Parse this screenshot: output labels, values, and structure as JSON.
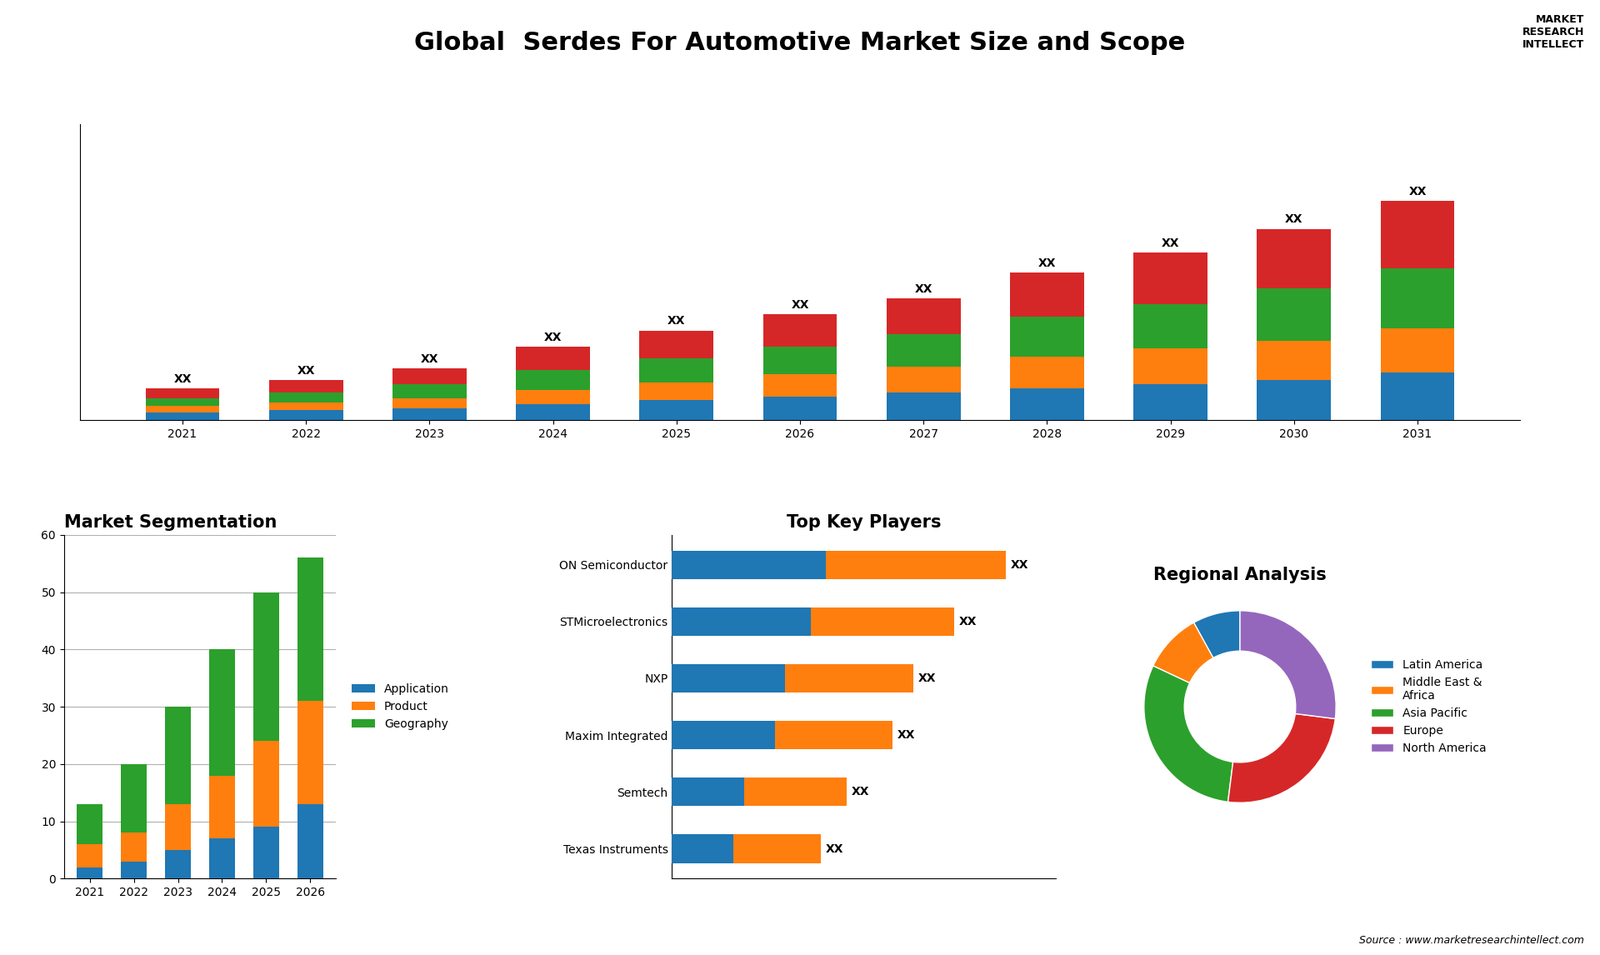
{
  "title": "Global  Serdes For Automotive Market Size and Scope",
  "annotations": [
    "Source : www.marketresearchintellect.com",
    "MARKET\nRESEARCH\nINTELLECT"
  ],
  "chart_data": [
    {
      "type": "bar",
      "stacked": true,
      "categories": [
        "2021",
        "2022",
        "2023",
        "2024",
        "2025",
        "2026",
        "2027",
        "2028",
        "2029",
        "2030",
        "2031"
      ],
      "series": [
        {
          "values": [
            2,
            2.5,
            3,
            4,
            5,
            6,
            7,
            8,
            9,
            10,
            12
          ]
        },
        {
          "values": [
            1.5,
            2,
            2.5,
            3.5,
            4.5,
            5.5,
            6.5,
            8,
            9,
            10,
            11
          ]
        },
        {
          "values": [
            2,
            2.5,
            3.5,
            5,
            6,
            7,
            8,
            10,
            11,
            13,
            15
          ]
        },
        {
          "values": [
            2.5,
            3,
            4,
            6,
            7,
            8,
            9,
            11,
            13,
            15,
            17
          ]
        }
      ],
      "ylim": [
        0,
        74.25
      ],
      "tick_labels": "x",
      "data_labels": true,
      "value_labels": [
        "XX",
        "XX",
        "XX",
        "XX",
        "XX",
        "XX",
        "XX",
        "XX",
        "XX",
        "XX",
        "XX"
      ]
    },
    {
      "type": "bar",
      "stacked": true,
      "title": "Market Segmentation",
      "categories": [
        "2021",
        "2022",
        "2023",
        "2024",
        "2025",
        "2026"
      ],
      "series": [
        {
          "name": "Application",
          "values": [
            2,
            3,
            5,
            7,
            9,
            13
          ]
        },
        {
          "name": "Product",
          "values": [
            4,
            5,
            8,
            11,
            15,
            18
          ]
        },
        {
          "name": "Geography",
          "values": [
            7,
            12,
            17,
            22,
            26,
            25
          ]
        }
      ],
      "ylim": [
        0,
        60
      ],
      "yticks": [
        0,
        10,
        20,
        30,
        40,
        50,
        60
      ],
      "grid": true,
      "legend": "center left"
    },
    {
      "type": "bar",
      "stacked": true,
      "orientation": "horizontal",
      "title": "Top Key Players",
      "categories": [
        "ON Semiconductor",
        "STMicroelectronics",
        "NXP",
        "Maxim Integrated",
        "Semtech",
        "Texas Instruments"
      ],
      "series": [
        {
          "values": [
            30,
            27,
            22,
            20,
            14,
            12
          ]
        },
        {
          "values": [
            35,
            28,
            25,
            23,
            20,
            17
          ]
        }
      ],
      "xlim": [
        0,
        74.75
      ],
      "tick_labels": "y",
      "data_labels": true,
      "value_labels": [
        "XX",
        "XX",
        "XX",
        "XX",
        "XX",
        "XX"
      ]
    },
    {
      "type": "pie",
      "title": "Regional Analysis",
      "categories": [
        "Latin America",
        "Middle East &\nAfrica",
        "Asia Pacific",
        "Europe",
        "North America"
      ],
      "values": [
        8,
        10,
        30,
        25,
        27
      ],
      "legend": "center left"
    }
  ]
}
